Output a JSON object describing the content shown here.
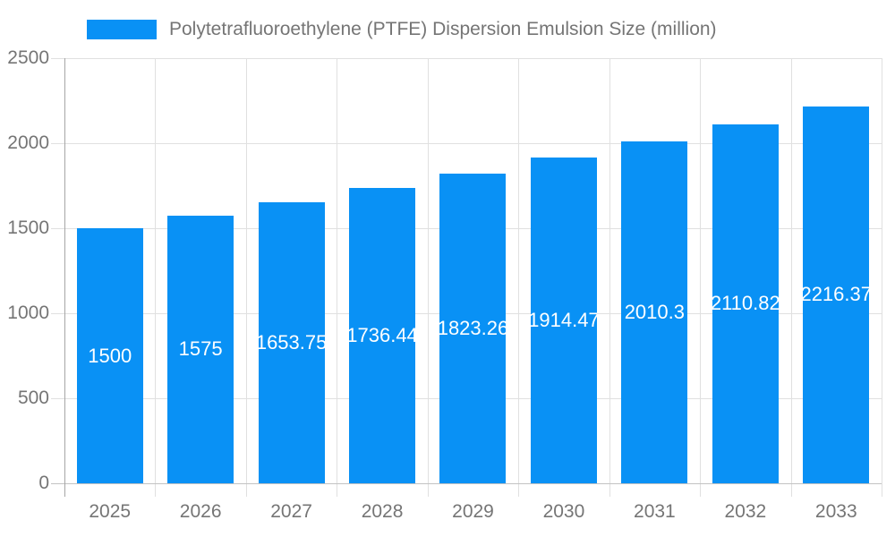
{
  "legend": {
    "label": "Polytetrafluoroethylene (PTFE) Dispersion Emulsion Size (million)",
    "swatch_color": "#0991f5"
  },
  "chart_data": {
    "type": "bar",
    "title": "Polytetrafluoroethylene (PTFE) Dispersion Emulsion Size (million)",
    "categories": [
      "2025",
      "2026",
      "2027",
      "2028",
      "2029",
      "2030",
      "2031",
      "2032",
      "2033"
    ],
    "values": [
      1500,
      1575,
      1653.75,
      1736.44,
      1823.26,
      1914.47,
      2010.3,
      2110.82,
      2216.37
    ],
    "value_labels": [
      "1500",
      "1575",
      "1653.75",
      "1736.44",
      "1823.26",
      "1914.47",
      "2010.3",
      "2110.82",
      "2216.37"
    ],
    "xlabel": "",
    "ylabel": "",
    "ylim": [
      0,
      2500
    ],
    "yticks": [
      0,
      500,
      1000,
      1500,
      2000,
      2500
    ],
    "grid": true,
    "legend_position": "top-left",
    "colors": {
      "bar": "#0991f5",
      "axis_text": "#757575",
      "gridline": "#e0e0e0",
      "baseline": "#c2c2c2",
      "axis_line": "#a6a6a6",
      "bar_label_text": "#ffffff"
    }
  }
}
